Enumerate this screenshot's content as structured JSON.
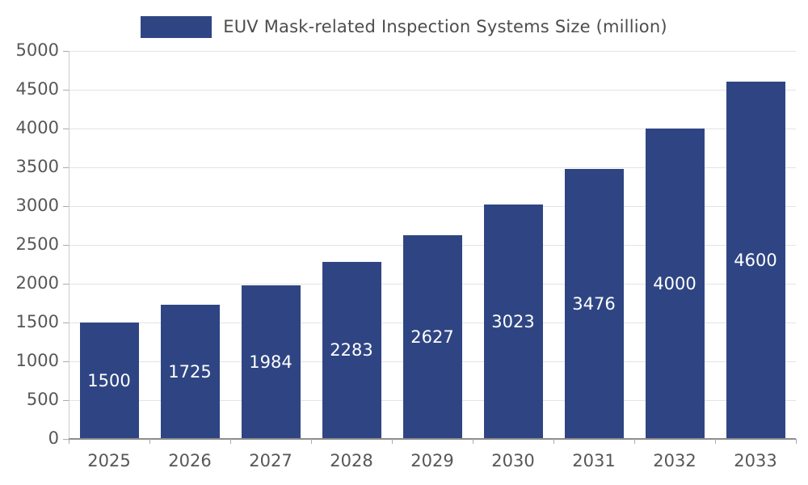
{
  "chart_data": {
    "type": "bar",
    "title": "EUV Mask-related Inspection Systems Size (million)",
    "categories": [
      "2025",
      "2026",
      "2027",
      "2028",
      "2029",
      "2030",
      "2031",
      "2032",
      "2033"
    ],
    "values": [
      1500,
      1725,
      1984,
      2283,
      2627,
      3023,
      3476,
      4000,
      4600
    ],
    "xlabel": "",
    "ylabel": "",
    "ylim": [
      0,
      5000
    ],
    "ytick_step": 500,
    "grid": true,
    "legend_position": "top-center",
    "bar_color": "#2f4583",
    "bar_label_color": "#ffffff",
    "axis_text_color": "#575757",
    "gridline_color": "#e3e3e3"
  },
  "legend": {
    "label": "EUV Mask-related Inspection Systems Size (million)"
  }
}
